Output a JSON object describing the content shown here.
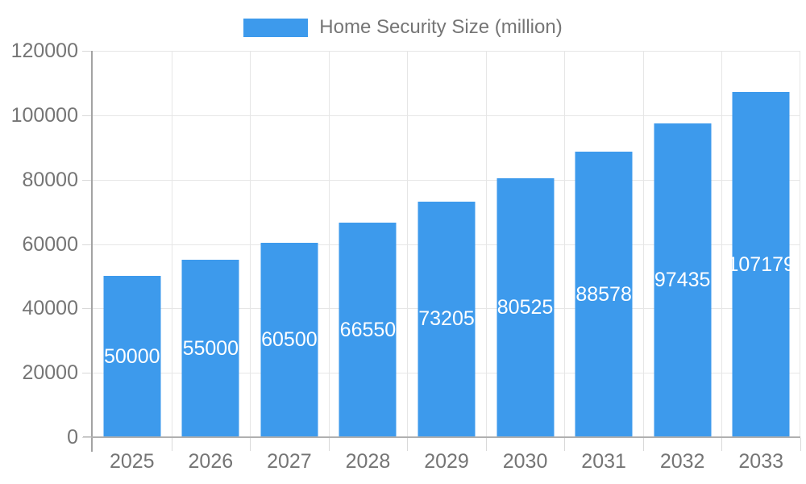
{
  "chart_data": {
    "type": "bar",
    "title": "",
    "legend_position": "top",
    "grid": true,
    "categories": [
      "2025",
      "2026",
      "2027",
      "2028",
      "2029",
      "2030",
      "2031",
      "2032",
      "2033"
    ],
    "series": [
      {
        "name": "Home Security Size (million)",
        "values": [
          50000,
          55000,
          60500,
          66550,
          73205,
          80525,
          88578,
          97435,
          107179
        ]
      }
    ],
    "bar_labels": [
      "50000",
      "55000",
      "60500",
      "66550",
      "73205",
      "80525",
      "88578",
      "97435",
      "107179"
    ],
    "y_axis": {
      "min": 0,
      "max": 120000,
      "tick_interval": 20000,
      "tick_labels": [
        "120000",
        "100000",
        "80000",
        "60000",
        "40000",
        "20000",
        "0"
      ]
    },
    "colors": {
      "bar": "#3d9aec",
      "bar_label_text": "#ffffff",
      "axis_text": "#757575",
      "gridline": "#e6e6e6",
      "axis_line": "#a3a3a3",
      "tick": "#d9d9d9"
    }
  }
}
